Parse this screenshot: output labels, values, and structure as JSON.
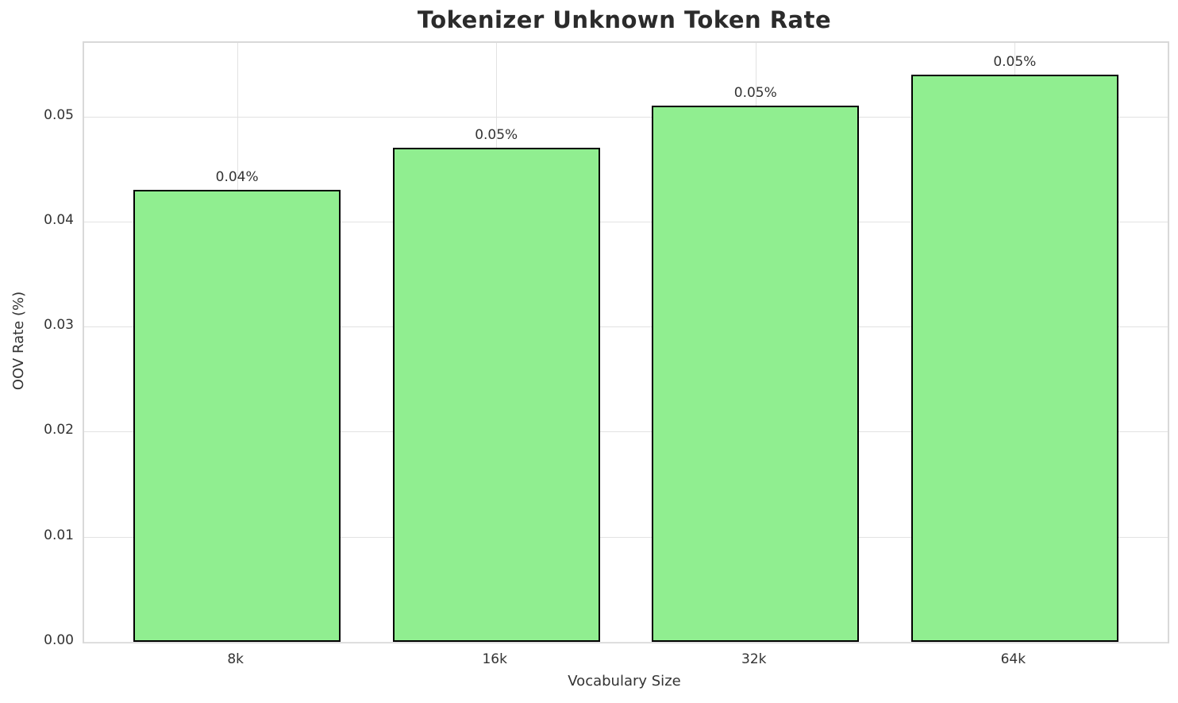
{
  "chart_data": {
    "type": "bar",
    "title": "Tokenizer Unknown Token Rate",
    "xlabel": "Vocabulary Size",
    "ylabel": "OOV Rate (%)",
    "categories": [
      "8k",
      "16k",
      "32k",
      "64k"
    ],
    "values": [
      0.043,
      0.047,
      0.051,
      0.054
    ],
    "bar_labels": [
      "0.04%",
      "0.05%",
      "0.05%",
      "0.05%"
    ],
    "ytick_values": [
      0.0,
      0.01,
      0.02,
      0.03,
      0.04,
      0.05
    ],
    "ytick_labels": [
      "0.00",
      "0.01",
      "0.02",
      "0.03",
      "0.04",
      "0.05"
    ],
    "ylim": [
      0,
      0.057
    ],
    "grid": true,
    "legend": null,
    "colors": {
      "bar_fill": "#90EE90",
      "bar_edge": "#000000",
      "gridline": "#e2e2e2",
      "spine": "#d9d9d9",
      "title_text": "#2b2b2b",
      "tick_text": "#333333"
    }
  }
}
